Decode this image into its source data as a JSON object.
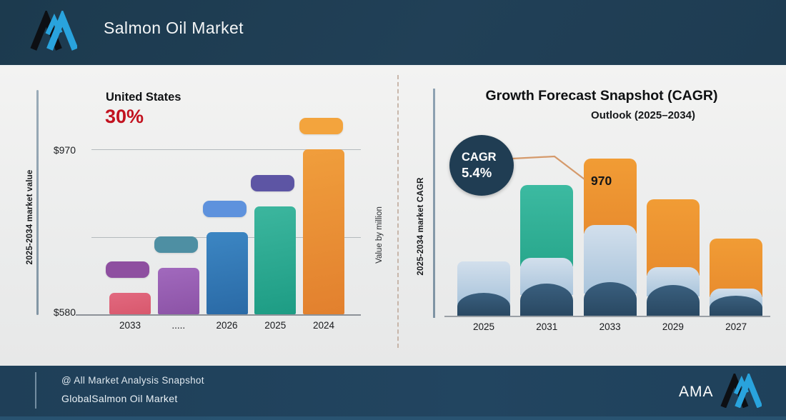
{
  "header": {
    "title": "Salmon Oil Market",
    "logo": "ama-mountain-logo"
  },
  "accent_colors": {
    "header_navy": "#20405a",
    "highlight_red": "#c2121f",
    "badge_navy": "#203d53",
    "connector_tan": "#d59a6b"
  },
  "left_chart": {
    "region_label": "United States",
    "highlight_value": "30%",
    "y_axis_label": "2025-2034 market value",
    "tick_top": "$970",
    "tick_bottom": "$580"
  },
  "middle": {
    "value_axis_label": "Value by million"
  },
  "right_chart": {
    "title": "Growth Forecast Snapshot (CAGR)",
    "subtitle": "Outlook (2025–2034)",
    "y_axis_label": "2025-2034 market CAGR",
    "badge": {
      "line1": "CAGR",
      "line2": "5.4%"
    },
    "annotation": "970"
  },
  "footer": {
    "line1": "@ All Market Analysis Snapshot",
    "line2": "GlobalSalmon Oil Market",
    "brand": "AMA"
  },
  "chart_data": [
    {
      "type": "bar",
      "title": "United States",
      "annotation": "30%",
      "ylabel": "2025-2034 market value",
      "ylim": [
        580,
        970
      ],
      "yticks": [
        "$580",
        "$970"
      ],
      "units": "USD million (values estimated from bar heights)",
      "categories": [
        "2033",
        ".....",
        "2026",
        "2025",
        "2024"
      ],
      "values": [
        630,
        690,
        775,
        835,
        970
      ],
      "grid": "two horizontal gridlines ($970 level and unlabeled ~775 level)",
      "legend": "none",
      "bar_colors": [
        [
          "#e2697f",
          "#d8586d"
        ],
        [
          "#a169bd",
          "#8c53a6"
        ],
        [
          "#3c86c3",
          "#2a6aa6"
        ],
        [
          "#3cb69e",
          "#1d9c84"
        ],
        [
          "#f09e3c",
          "#e2802e"
        ]
      ],
      "cap_colors": [
        "#8e4fa0",
        "#4e8fa3",
        "#5e92dd",
        "#5d55a4",
        "#f3a43d"
      ],
      "cap_note": "floating rounded marker above each bar"
    },
    {
      "type": "bar",
      "subtype": "stacked",
      "title": "Growth Forecast Snapshot (CAGR)",
      "subtitle": "Outlook (2025–2034)",
      "ylabel": "2025-2034 market CAGR",
      "annotations": [
        {
          "text": "CAGR 5.4%",
          "style": "circle badge with connector line"
        },
        {
          "text": "970",
          "on": "2033"
        }
      ],
      "units": "relative units estimated from segment heights (no numeric axis shown)",
      "categories": [
        "2025",
        "2031",
        "2033",
        "2029",
        "2027"
      ],
      "palette": {
        "navy": [
          "#3a5f7e",
          "#294862"
        ],
        "lightblue": [
          "#d2dfec",
          "#a9c4db"
        ],
        "teal": [
          "#3cbaa1",
          "#28a78c"
        ],
        "orange": [
          "#f19c35",
          "#e88c2e"
        ]
      },
      "bars": [
        {
          "label": "2025",
          "segments": [
            [
              "navy",
              32
            ],
            [
              "lightblue",
              44
            ]
          ]
        },
        {
          "label": "2031",
          "segments": [
            [
              "navy",
              45
            ],
            [
              "lightblue",
              36
            ],
            [
              "teal",
              102
            ]
          ]
        },
        {
          "label": "2033",
          "segments": [
            [
              "navy",
              47
            ],
            [
              "lightblue",
              80
            ],
            [
              "orange",
              93
            ]
          ],
          "annotation": "970"
        },
        {
          "label": "2029",
          "segments": [
            [
              "navy",
              43
            ],
            [
              "lightblue",
              25
            ],
            [
              "orange",
              95
            ]
          ]
        },
        {
          "label": "2027",
          "segments": [
            [
              "navy",
              28
            ],
            [
              "lightblue",
              10
            ],
            [
              "orange",
              70
            ]
          ]
        }
      ],
      "legend": "none",
      "grid": "off"
    }
  ]
}
